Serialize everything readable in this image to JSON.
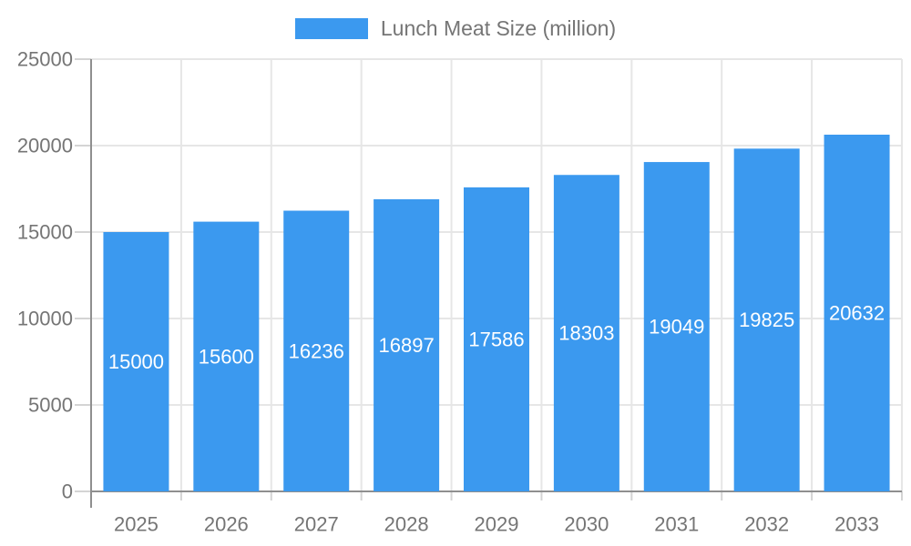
{
  "legend": {
    "label": "Lunch Meat Size (million)"
  },
  "colors": {
    "bar": "#3B99EF",
    "axis_line": "#8F8F8F",
    "grid_line": "#E6E6E6",
    "tick": "#D4D4D4",
    "axis_text": "#757575",
    "bar_label_text": "#FFFFFF",
    "background": "#FFFFFF"
  },
  "chart_data": {
    "type": "bar",
    "title": "",
    "xlabel": "",
    "ylabel": "",
    "categories": [
      "2025",
      "2026",
      "2027",
      "2028",
      "2029",
      "2030",
      "2031",
      "2032",
      "2033"
    ],
    "series": [
      {
        "name": "Lunch Meat Size (million)",
        "values": [
          15000,
          15600,
          16236,
          16897,
          17586,
          18303,
          19049,
          19825,
          20632
        ]
      }
    ],
    "ylim": [
      0,
      25000
    ],
    "ytick_interval": 5000,
    "ytick_labels": [
      "0",
      "5000",
      "10000",
      "15000",
      "20000",
      "25000"
    ],
    "grid": true,
    "legend_position": "top",
    "bar_labels_visible": true,
    "bar_label_position": "center-inside"
  }
}
